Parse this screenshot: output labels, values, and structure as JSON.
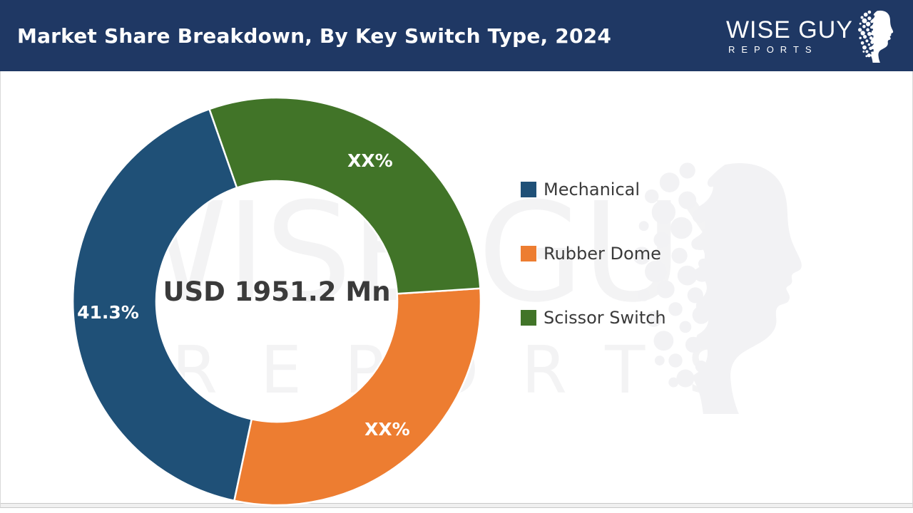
{
  "header": {
    "title": "Market Share Breakdown, By Key Switch Type, 2024",
    "logo": {
      "line1": "WISE GUY",
      "line2": "REPORTS"
    }
  },
  "watermark": {
    "line1": "WISE GUY",
    "line2": "REPORTS"
  },
  "chart_data": {
    "type": "pie",
    "subtype": "donut",
    "title": "Market Share Breakdown, By Key Switch Type, 2024",
    "center_label": "USD 1951.2 Mn",
    "start_angle_deg": -19.3,
    "direction": "counterclockwise",
    "inner_radius_ratio": 0.59,
    "legend_position": "right",
    "segments": [
      {
        "label": "Mechanical",
        "value": 41.3,
        "display_label": "41.3%",
        "color": "#1F5077"
      },
      {
        "label": "Rubber Dome",
        "value": 29.35,
        "display_label": "XX%",
        "color": "#ED7D31"
      },
      {
        "label": "Scissor Switch",
        "value": 29.35,
        "display_label": "XX%",
        "color": "#417428"
      }
    ]
  }
}
